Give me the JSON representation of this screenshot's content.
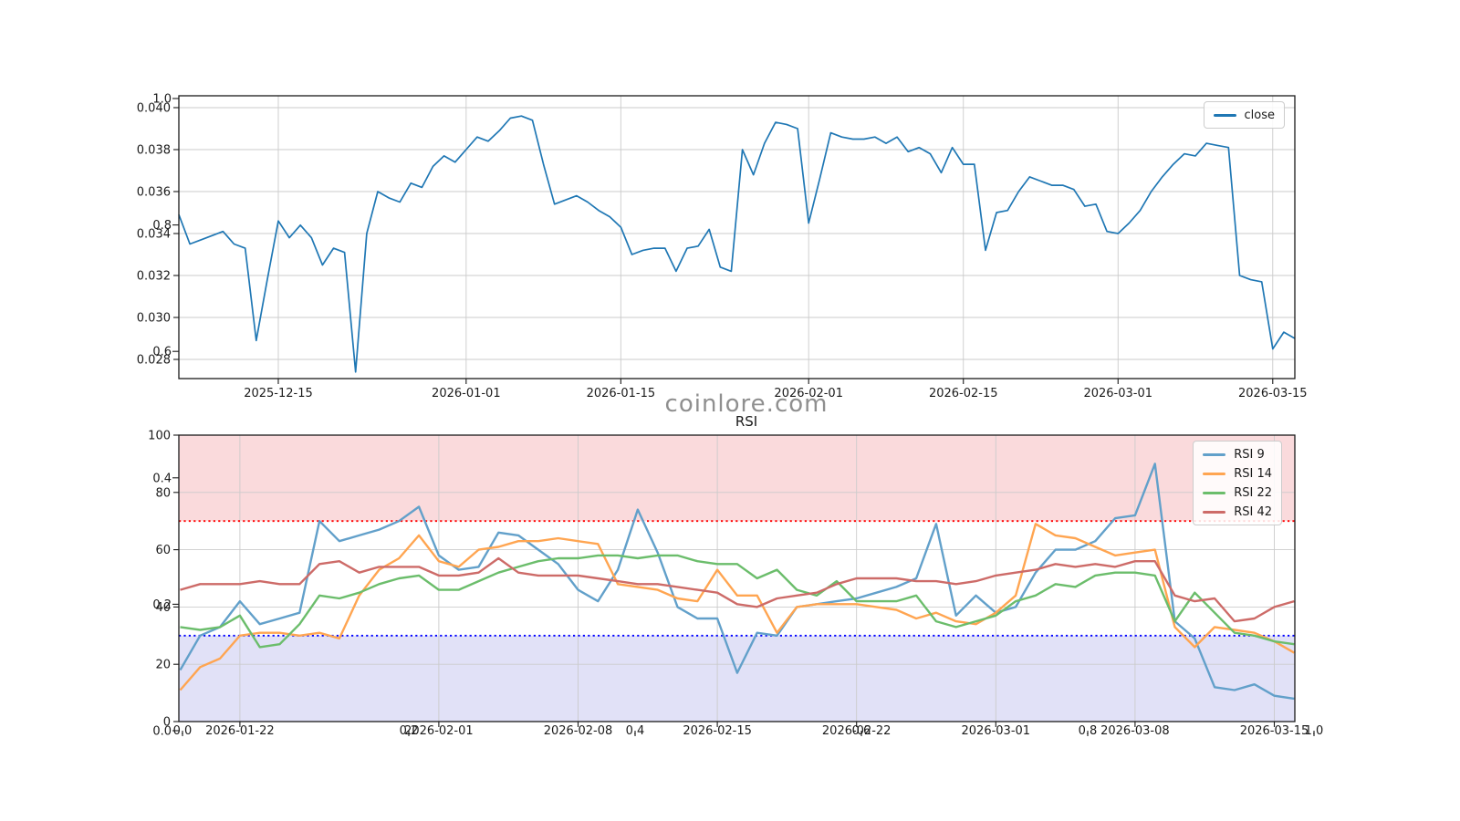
{
  "watermark": "coinlore.com",
  "colors": {
    "close_line": "#1f77b4",
    "rsi9_line": "#62a0ca",
    "rsi14_line": "#ffa551",
    "rsi22_line": "#6bbd6b",
    "rsi42_line": "#cd6b68",
    "overbought_dotted": "#ff0000",
    "oversold_dotted": "#0000ff",
    "overbought_band": "#fadadc",
    "oversold_band": "#e1e1f7",
    "grid": "#cbcbcb",
    "spine": "#1a1a1a",
    "tick_text": "#1a1a1a"
  },
  "chart_data": [
    {
      "type": "line",
      "name": "price",
      "title": "",
      "legend": [
        {
          "label": "close",
          "color": "#1f77b4"
        }
      ],
      "x_start_date": "2025-12-06",
      "x_end_date": "2026-03-17",
      "x_freq": "daily",
      "x_tick_labels": [
        "2025-12-15",
        "2026-01-01",
        "2026-01-15",
        "2026-02-01",
        "2026-02-15",
        "2026-03-01",
        "2026-03-15"
      ],
      "x_tick_indices": [
        9,
        26,
        40,
        57,
        71,
        85,
        99
      ],
      "y_tick_labels": [
        "0.028",
        "0.030",
        "0.032",
        "0.034",
        "0.036",
        "0.038",
        "0.040"
      ],
      "y_tick_values": [
        0.028,
        0.03,
        0.032,
        0.034,
        0.036,
        0.038,
        0.04
      ],
      "ylim": [
        0.0269,
        0.0406
      ],
      "grid": true,
      "legend_position": "upper right",
      "series": [
        {
          "name": "close",
          "values": [
            0.0349,
            0.0335,
            0.0337,
            0.0339,
            0.0341,
            0.0335,
            0.0333,
            0.0289,
            0.0318,
            0.0346,
            0.0338,
            0.0344,
            0.0338,
            0.0325,
            0.0333,
            0.0331,
            0.0274,
            0.034,
            0.036,
            0.0357,
            0.0355,
            0.0364,
            0.0362,
            0.0372,
            0.0377,
            0.0374,
            0.038,
            0.0386,
            0.0384,
            0.0389,
            0.0395,
            0.0396,
            0.0394,
            0.0373,
            0.0354,
            0.0356,
            0.0358,
            0.0355,
            0.0351,
            0.0348,
            0.0343,
            0.033,
            0.0332,
            0.0333,
            0.0333,
            0.0322,
            0.0333,
            0.0334,
            0.0342,
            0.0324,
            0.0322,
            0.038,
            0.0368,
            0.0383,
            0.0393,
            0.0392,
            0.039,
            0.0345,
            0.0366,
            0.0388,
            0.0386,
            0.0385,
            0.0385,
            0.0386,
            0.0383,
            0.0386,
            0.0379,
            0.0381,
            0.0378,
            0.0369,
            0.0381,
            0.0373,
            0.0373,
            0.0332,
            0.035,
            0.0351,
            0.036,
            0.0367,
            0.0365,
            0.0363,
            0.0363,
            0.0361,
            0.0353,
            0.0354,
            0.0341,
            0.034,
            0.0345,
            0.0351,
            0.036,
            0.0367,
            0.0373,
            0.0378,
            0.0377,
            0.0383,
            0.0382,
            0.0381,
            0.032,
            0.0318,
            0.0317,
            0.0285,
            0.0293,
            0.029
          ]
        }
      ]
    },
    {
      "type": "line",
      "name": "rsi",
      "title": "RSI",
      "legend": [
        {
          "label": "RSI 9",
          "color": "#62a0ca"
        },
        {
          "label": "RSI 14",
          "color": "#ffa551"
        },
        {
          "label": "RSI 22",
          "color": "#6bbd6b"
        },
        {
          "label": "RSI 42",
          "color": "#cd6b68"
        }
      ],
      "x_start_date": "2026-01-19",
      "x_end_date": "2026-03-16",
      "x_freq": "daily",
      "x_tick_labels": [
        "2026-01-22",
        "2026-02-01",
        "2026-02-08",
        "2026-02-15",
        "2026-02-22",
        "2026-03-01",
        "2026-03-08",
        "2026-03-15"
      ],
      "x_tick_indices": [
        3,
        13,
        20,
        27,
        34,
        41,
        48,
        55
      ],
      "y_tick_labels": [
        "0",
        "20",
        "40",
        "60",
        "80",
        "100"
      ],
      "y_tick_values": [
        0,
        20,
        40,
        60,
        80,
        100
      ],
      "ylim": [
        0,
        100
      ],
      "grid": true,
      "legend_position": "upper right",
      "overbought_level": 70,
      "oversold_level": 30,
      "bands": [
        {
          "from": 70,
          "to": 100,
          "color": "#fadadc",
          "name": "overbought"
        },
        {
          "from": 0,
          "to": 30,
          "color": "#e1e1f7",
          "name": "oversold"
        }
      ],
      "series": [
        {
          "name": "RSI 9",
          "color": "#62a0ca",
          "values": [
            18,
            30,
            33,
            42,
            34,
            36,
            38,
            70,
            63,
            65,
            67,
            70,
            75,
            58,
            53,
            54,
            66,
            65,
            60,
            55,
            46,
            42,
            53,
            74,
            59,
            40,
            36,
            36,
            17,
            31,
            30,
            40,
            41,
            42,
            43,
            45,
            47,
            50,
            69,
            37,
            44,
            38,
            40,
            52,
            60,
            60,
            63,
            71,
            72,
            90,
            35,
            29,
            12,
            11,
            13,
            9,
            8
          ]
        },
        {
          "name": "RSI 14",
          "color": "#ffa551",
          "values": [
            11,
            19,
            22,
            30,
            31,
            31,
            30,
            31,
            29,
            44,
            53,
            57,
            65,
            56,
            54,
            60,
            61,
            63,
            63,
            64,
            63,
            62,
            48,
            47,
            46,
            43,
            42,
            53,
            44,
            44,
            31,
            40,
            41,
            41,
            41,
            40,
            39,
            36,
            38,
            35,
            34,
            38,
            44,
            69,
            65,
            64,
            61,
            58,
            59,
            60,
            33,
            26,
            33,
            32,
            31,
            28,
            24
          ]
        },
        {
          "name": "RSI 22",
          "color": "#6bbd6b",
          "values": [
            33,
            32,
            33,
            37,
            26,
            27,
            34,
            44,
            43,
            45,
            48,
            50,
            51,
            46,
            46,
            49,
            52,
            54,
            56,
            57,
            57,
            58,
            58,
            57,
            58,
            58,
            56,
            55,
            55,
            50,
            53,
            46,
            44,
            49,
            42,
            42,
            42,
            44,
            35,
            33,
            35,
            37,
            42,
            44,
            48,
            47,
            51,
            52,
            52,
            51,
            35,
            45,
            38,
            31,
            30,
            28,
            27
          ]
        },
        {
          "name": "RSI 42",
          "color": "#cd6b68",
          "values": [
            46,
            48,
            48,
            48,
            49,
            48,
            48,
            55,
            56,
            52,
            54,
            54,
            54,
            51,
            51,
            52,
            57,
            52,
            51,
            51,
            51,
            50,
            49,
            48,
            48,
            47,
            46,
            45,
            41,
            40,
            43,
            44,
            45,
            48,
            50,
            50,
            50,
            49,
            49,
            48,
            49,
            51,
            52,
            53,
            55,
            54,
            55,
            54,
            56,
            56,
            44,
            42,
            43,
            35,
            36,
            40,
            42
          ]
        }
      ]
    }
  ],
  "figure_artifacts": {
    "note_values_left": [
      "0.0",
      "0.2",
      "0.4",
      "0.6",
      "0.8",
      "1.0"
    ],
    "note_values_bottom": [
      "0.0",
      "0.2",
      "0.4",
      "0.6",
      "0.8",
      "1.0"
    ]
  }
}
